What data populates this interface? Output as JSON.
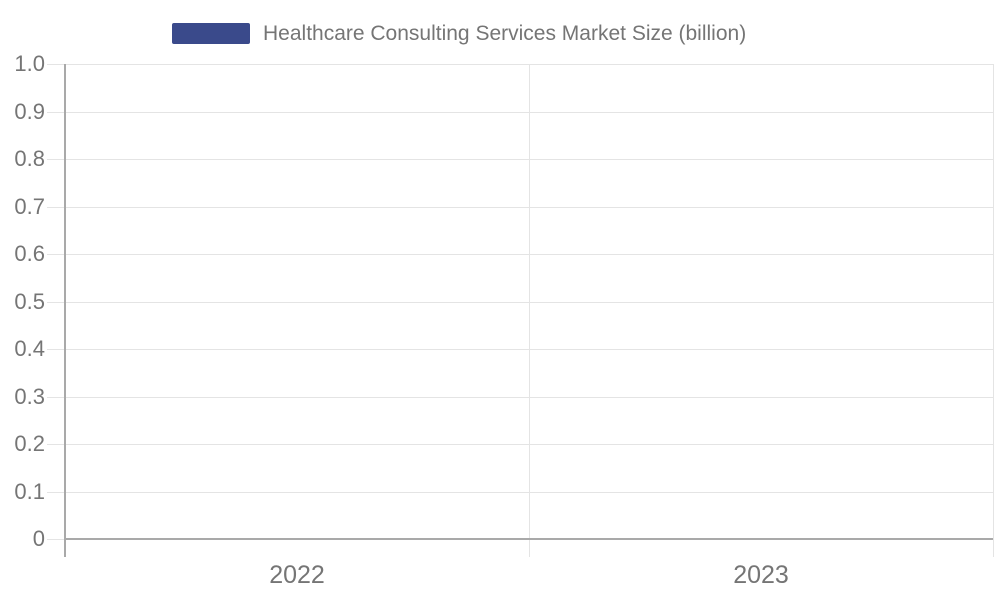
{
  "legend": {
    "items": [
      {
        "label": "Healthcare Consulting Services Market Size (billion)",
        "color": "#3A4A8B"
      }
    ]
  },
  "chart_data": {
    "type": "bar",
    "title": "Healthcare Consulting Services Market Size (billion)",
    "categories": [
      "2022",
      "2023"
    ],
    "series": [
      {
        "name": "Healthcare Consulting Services Market Size (billion)",
        "color": "#3A4A8B",
        "values": [
          null,
          null
        ]
      }
    ],
    "xlabel": "",
    "ylabel": "",
    "ylim": [
      0,
      1.0
    ],
    "y_ticks": [
      0,
      0.1,
      0.2,
      0.3,
      0.4,
      0.5,
      0.6,
      0.7,
      0.8,
      0.9,
      1.0
    ],
    "y_tick_labels": [
      "0",
      "0.1",
      "0.2",
      "0.3",
      "0.4",
      "0.5",
      "0.6",
      "0.7",
      "0.8",
      "0.9",
      "1.0"
    ],
    "grid": true,
    "legend_position": "top",
    "bars_visible": false
  },
  "colors": {
    "accent": "#3A4A8B",
    "label_text": "#757575",
    "gridline": "#E4E4E4",
    "axis_line": "#A9A9A9",
    "background": "#FFFFFF"
  }
}
